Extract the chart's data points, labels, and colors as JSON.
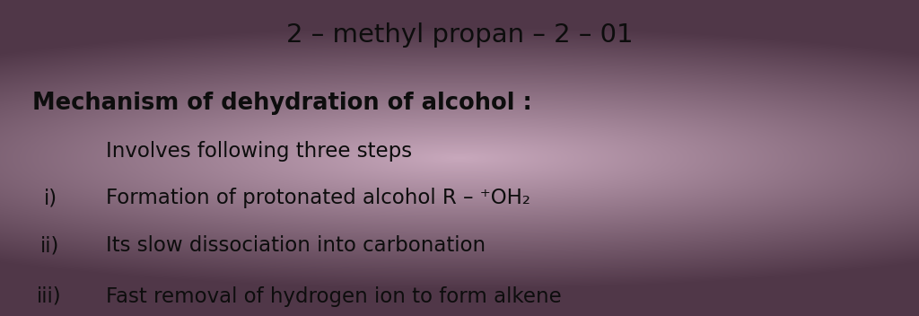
{
  "title": "2 – methyl propan – 2 – 01",
  "line2": "Mechanism of dehydration of alcohol :",
  "line3": "Involves following three steps",
  "item_i_label": "i)",
  "item_i_text": "Formation of protonated alcohol R – ⁺OH₂",
  "item_ii_label": "ii)",
  "item_ii_text": "Its slow dissociation into carbonation",
  "item_iii_label": "iii)",
  "item_iii_text": "Fast removal of hydrogen ion to form alkene",
  "bg_center": "#c8a8bc",
  "bg_edge": "#6a4858",
  "text_color": "#0d0d0d",
  "figwidth": 10.24,
  "figheight": 3.52
}
